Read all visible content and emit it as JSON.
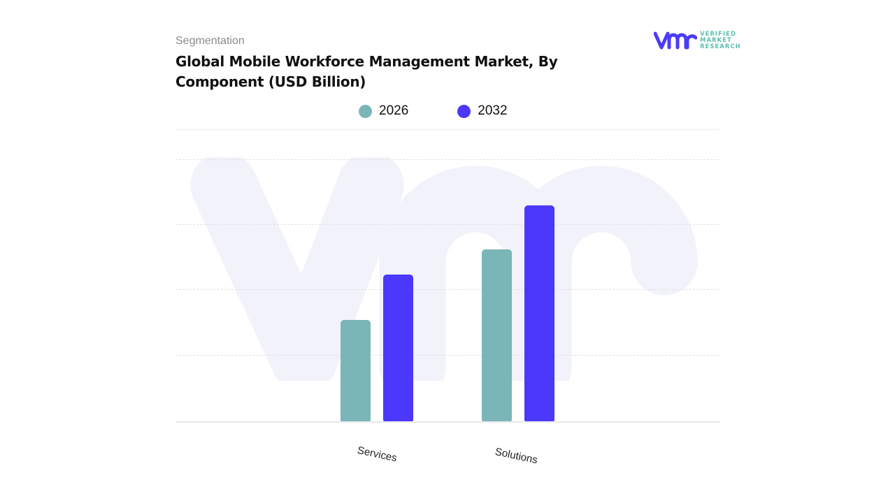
{
  "header": {
    "kicker": "Segmentation",
    "title": "Global Mobile Workforce Management Market, By Component (USD Billion)"
  },
  "logo": {
    "mark": "vmr",
    "lines": [
      "VERIFIED",
      "MARKET",
      "RESEARCH"
    ],
    "brand_color": "#4b3cf5",
    "text_color": "#5fbfb0"
  },
  "legend": [
    {
      "label": "2026",
      "color": "#7ab5b8"
    },
    {
      "label": "2032",
      "color": "#4b38fa"
    }
  ],
  "chart_data": {
    "type": "bar",
    "title": "Global Mobile Workforce Management Market, By Component (USD Billion)",
    "xlabel": "",
    "ylabel": "",
    "categories": [
      "Services",
      "Solutions"
    ],
    "series": [
      {
        "name": "2026",
        "color": "#7ab5b8",
        "values": [
          1.56,
          2.65
        ]
      },
      {
        "name": "2032",
        "color": "#4b38fa",
        "values": [
          2.26,
          3.32
        ]
      }
    ],
    "ylim": [
      0,
      4.5
    ],
    "grid": true,
    "legend_position": "top",
    "value_labels_shown": false,
    "note": "Values estimated from bar heights; no y-axis tick labels are shown"
  }
}
